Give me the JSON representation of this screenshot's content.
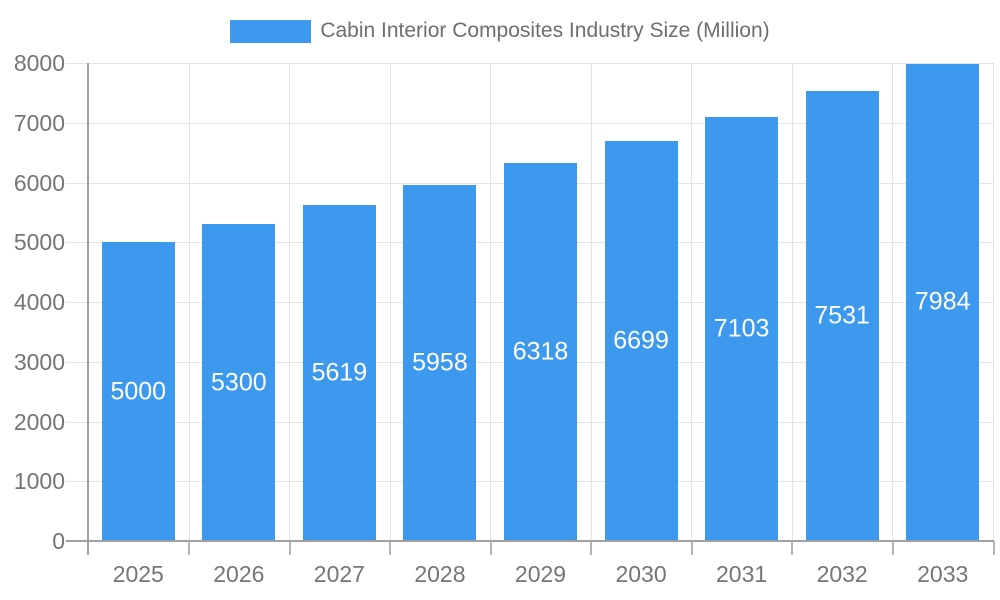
{
  "chart_data": {
    "type": "bar",
    "title": "Cabin Interior Composites Industry Size (Million)",
    "legend_position": "top",
    "legend_entries": [
      {
        "label": "Cabin Interior Composites Industry Size (Million)",
        "color": "#3d99ee"
      }
    ],
    "categories": [
      "2025",
      "2026",
      "2027",
      "2028",
      "2029",
      "2030",
      "2031",
      "2032",
      "2033"
    ],
    "values": [
      5000,
      5300,
      5619,
      5958,
      6318,
      6699,
      7103,
      7531,
      7984
    ],
    "xlabel": "",
    "ylabel": "",
    "ylim": [
      0,
      8000
    ],
    "yticks": [
      0,
      1000,
      2000,
      3000,
      4000,
      5000,
      6000,
      7000,
      8000
    ],
    "grid": true,
    "value_labels_position": "inside-center"
  },
  "theme": {
    "background": "#ffffff",
    "bar_color": "#3d99ee",
    "grid_color": "#e4e4e4",
    "axis_line_color": "#a0a0a0",
    "tick_color": "#b3b3b3",
    "axis_text_color": "#757575",
    "title_color": "#6e6e6e",
    "value_label_color": "#ffffff"
  }
}
